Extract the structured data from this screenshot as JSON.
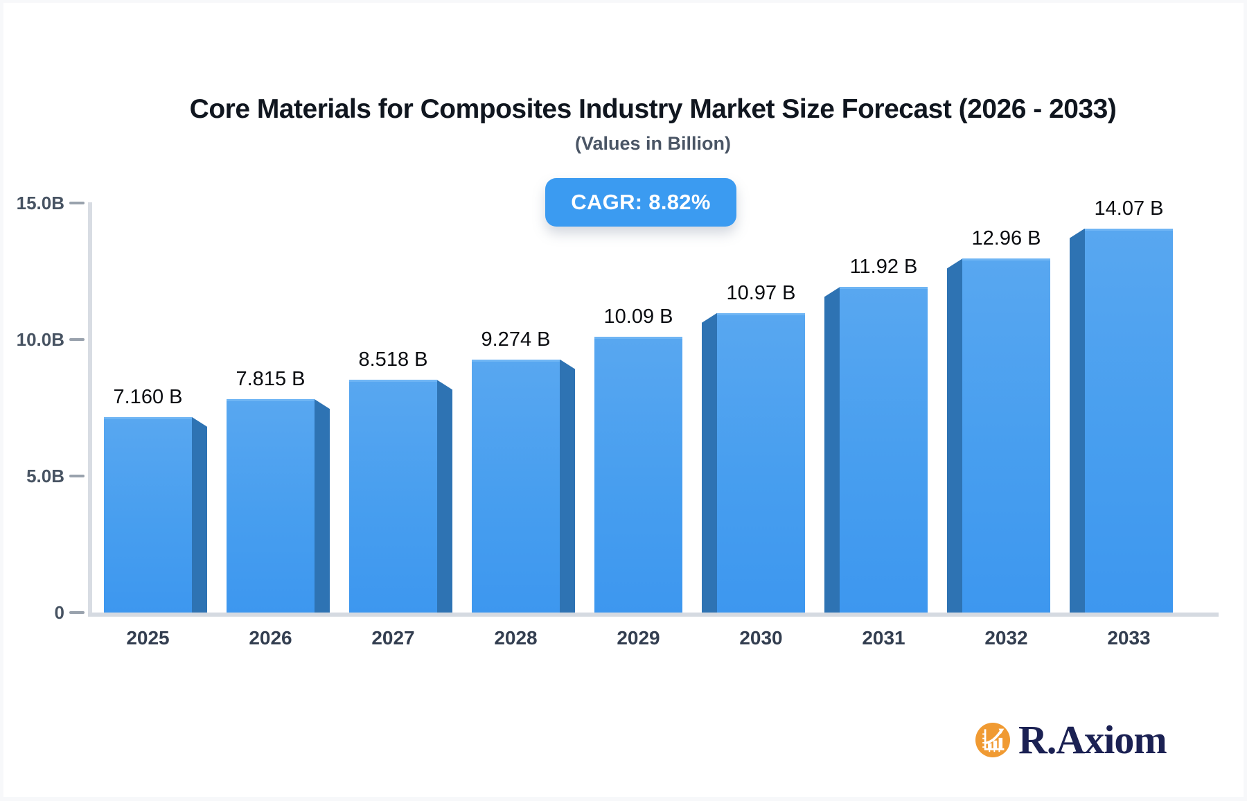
{
  "chart_data": {
    "type": "bar",
    "title": "Core Materials for Composites Industry Market Size Forecast (2026 - 2033)",
    "subtitle": "(Values in Billion)",
    "cagr_label": "CAGR: 8.82%",
    "categories": [
      "2025",
      "2026",
      "2027",
      "2028",
      "2029",
      "2030",
      "2031",
      "2032",
      "2033"
    ],
    "values": [
      7.16,
      7.815,
      8.518,
      9.274,
      10.09,
      10.97,
      11.92,
      12.96,
      14.07
    ],
    "value_labels": [
      "7.160 B",
      "7.815 B",
      "8.518 B",
      "9.274 B",
      "10.09 B",
      "10.97 B",
      "11.92 B",
      "12.96 B",
      "14.07 B"
    ],
    "xlabel": "",
    "ylabel": "",
    "ylim": [
      0,
      15
    ],
    "yticks": [
      {
        "label": "15.0B",
        "value": 15
      },
      {
        "label": "10.0B",
        "value": 10
      },
      {
        "label": "5.0B",
        "value": 5
      },
      {
        "label": "0",
        "value": 0
      }
    ],
    "grid": false,
    "legend": false,
    "colors": {
      "bar_top": "#58a7f0",
      "bar_bottom": "#3d97ef",
      "bar_side": "#2e73b3",
      "bar_top_edge": "#6fb5f4",
      "axis": "#d8dce3",
      "badge_background": "#3b9bf1",
      "badge_text": "#ffffff"
    }
  },
  "branding": {
    "logo_text": "R.Axiom",
    "logo_icon": "bar-chart-growth-icon",
    "logo_circle_color": "#f09a32",
    "logo_text_color": "#1b2153"
  }
}
